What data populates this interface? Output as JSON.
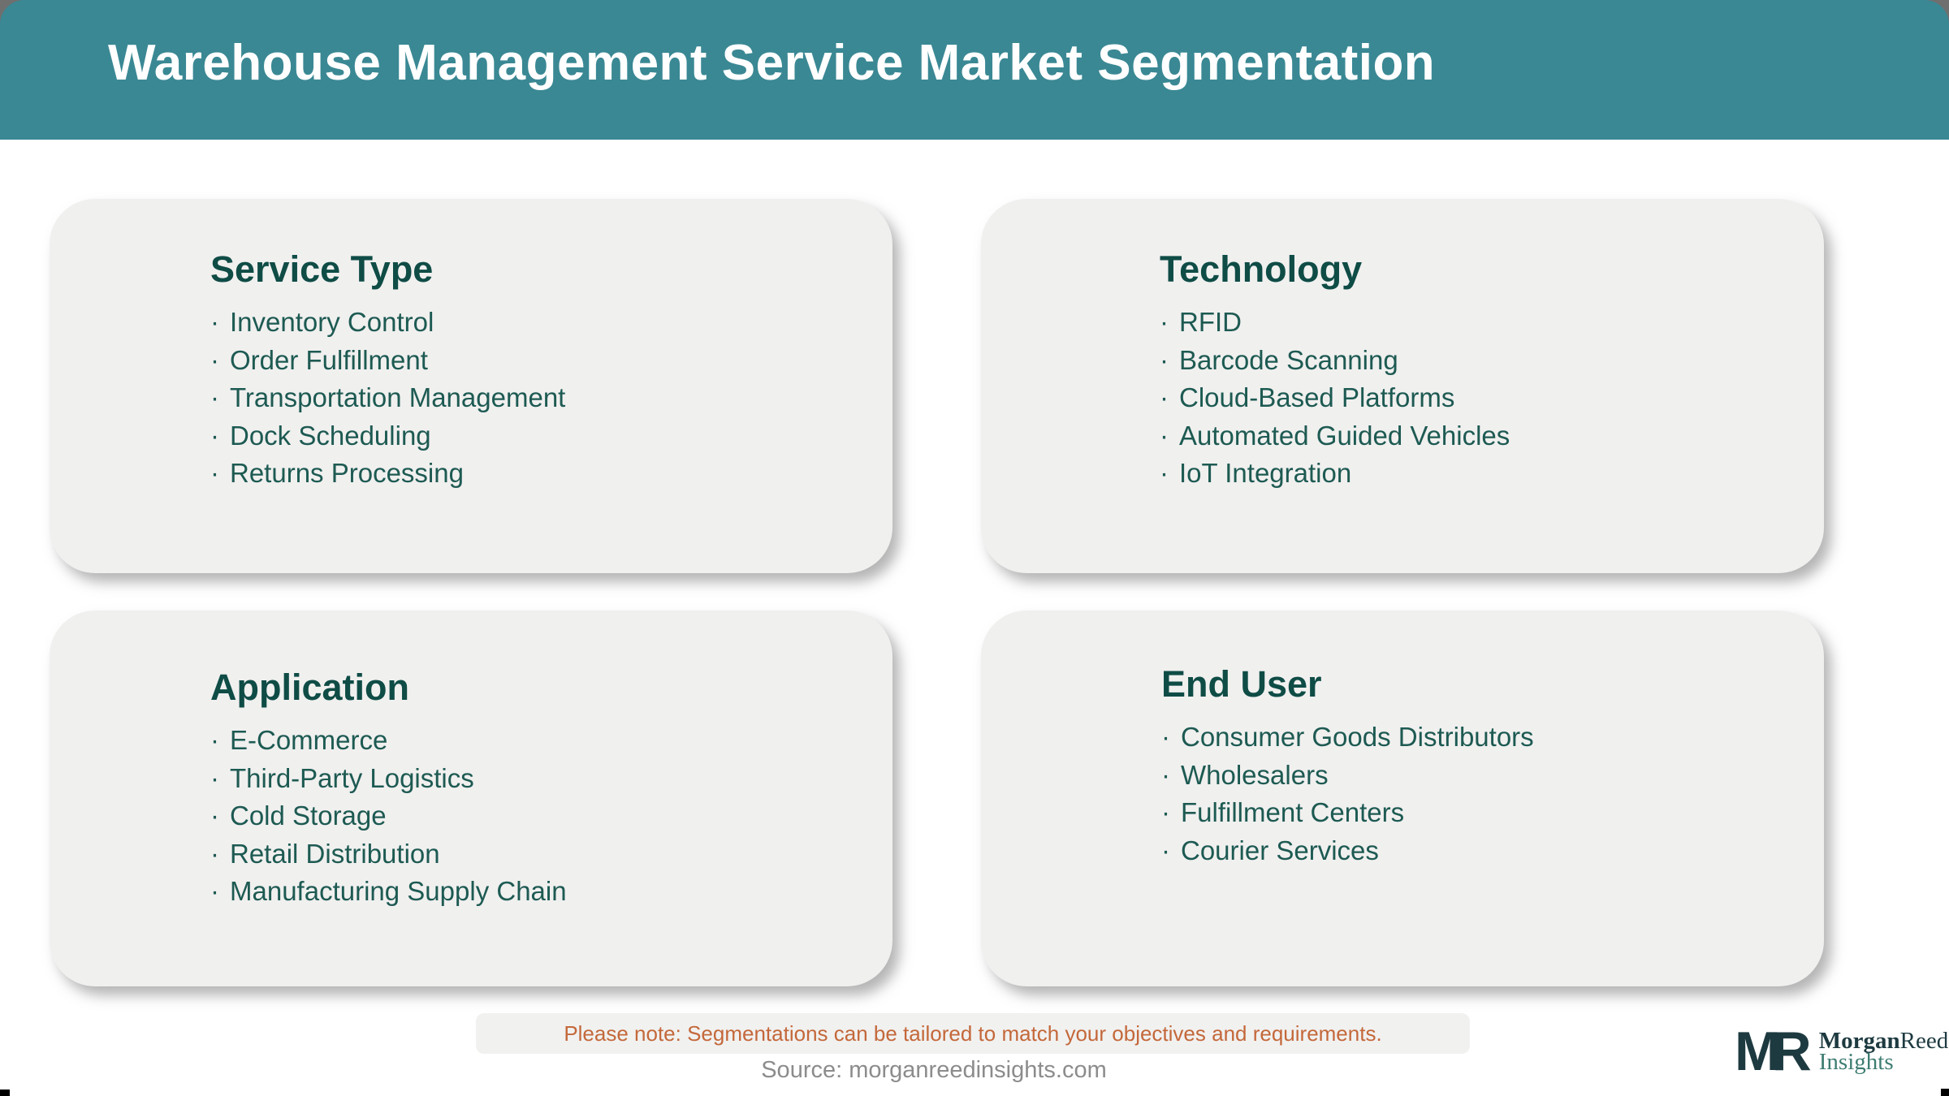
{
  "header": {
    "title": "Warehouse Management Service Market Segmentation"
  },
  "cards": [
    {
      "title": "Service Type",
      "items": [
        "Inventory Control",
        "Order Fulfillment",
        "Transportation Management",
        "Dock Scheduling",
        "Returns Processing"
      ]
    },
    {
      "title": "Technology",
      "items": [
        "RFID",
        "Barcode Scanning",
        "Cloud-Based Platforms",
        "Automated Guided Vehicles",
        "IoT Integration"
      ]
    },
    {
      "title": "Application",
      "items": [
        "E-Commerce",
        "Third-Party Logistics",
        "Cold Storage",
        "Retail Distribution",
        "Manufacturing Supply Chain"
      ]
    },
    {
      "title": "End User",
      "items": [
        "Consumer Goods Distributors",
        "Wholesalers",
        "Fulfillment Centers",
        "Courier Services"
      ]
    }
  ],
  "note": {
    "text": "Please note: Segmentations can be tailored to match your objectives and requirements."
  },
  "source": {
    "text": "Source: morganreedinsights.com"
  },
  "logo": {
    "monogram": "MR",
    "name_part1": "Morgan",
    "name_part2": "Reed",
    "subtitle": "Insights"
  },
  "colors": {
    "header_teal": "#3a8894",
    "card_bg": "#f0f0ef",
    "heading_green": "#0f4c46",
    "item_green": "#1d5a52",
    "note_orange": "#c4683a",
    "source_gray": "#8c8c8c",
    "logo_dark": "#1d3a40",
    "logo_green": "#3e7d72",
    "corner_gray": "#6f6f6f"
  }
}
